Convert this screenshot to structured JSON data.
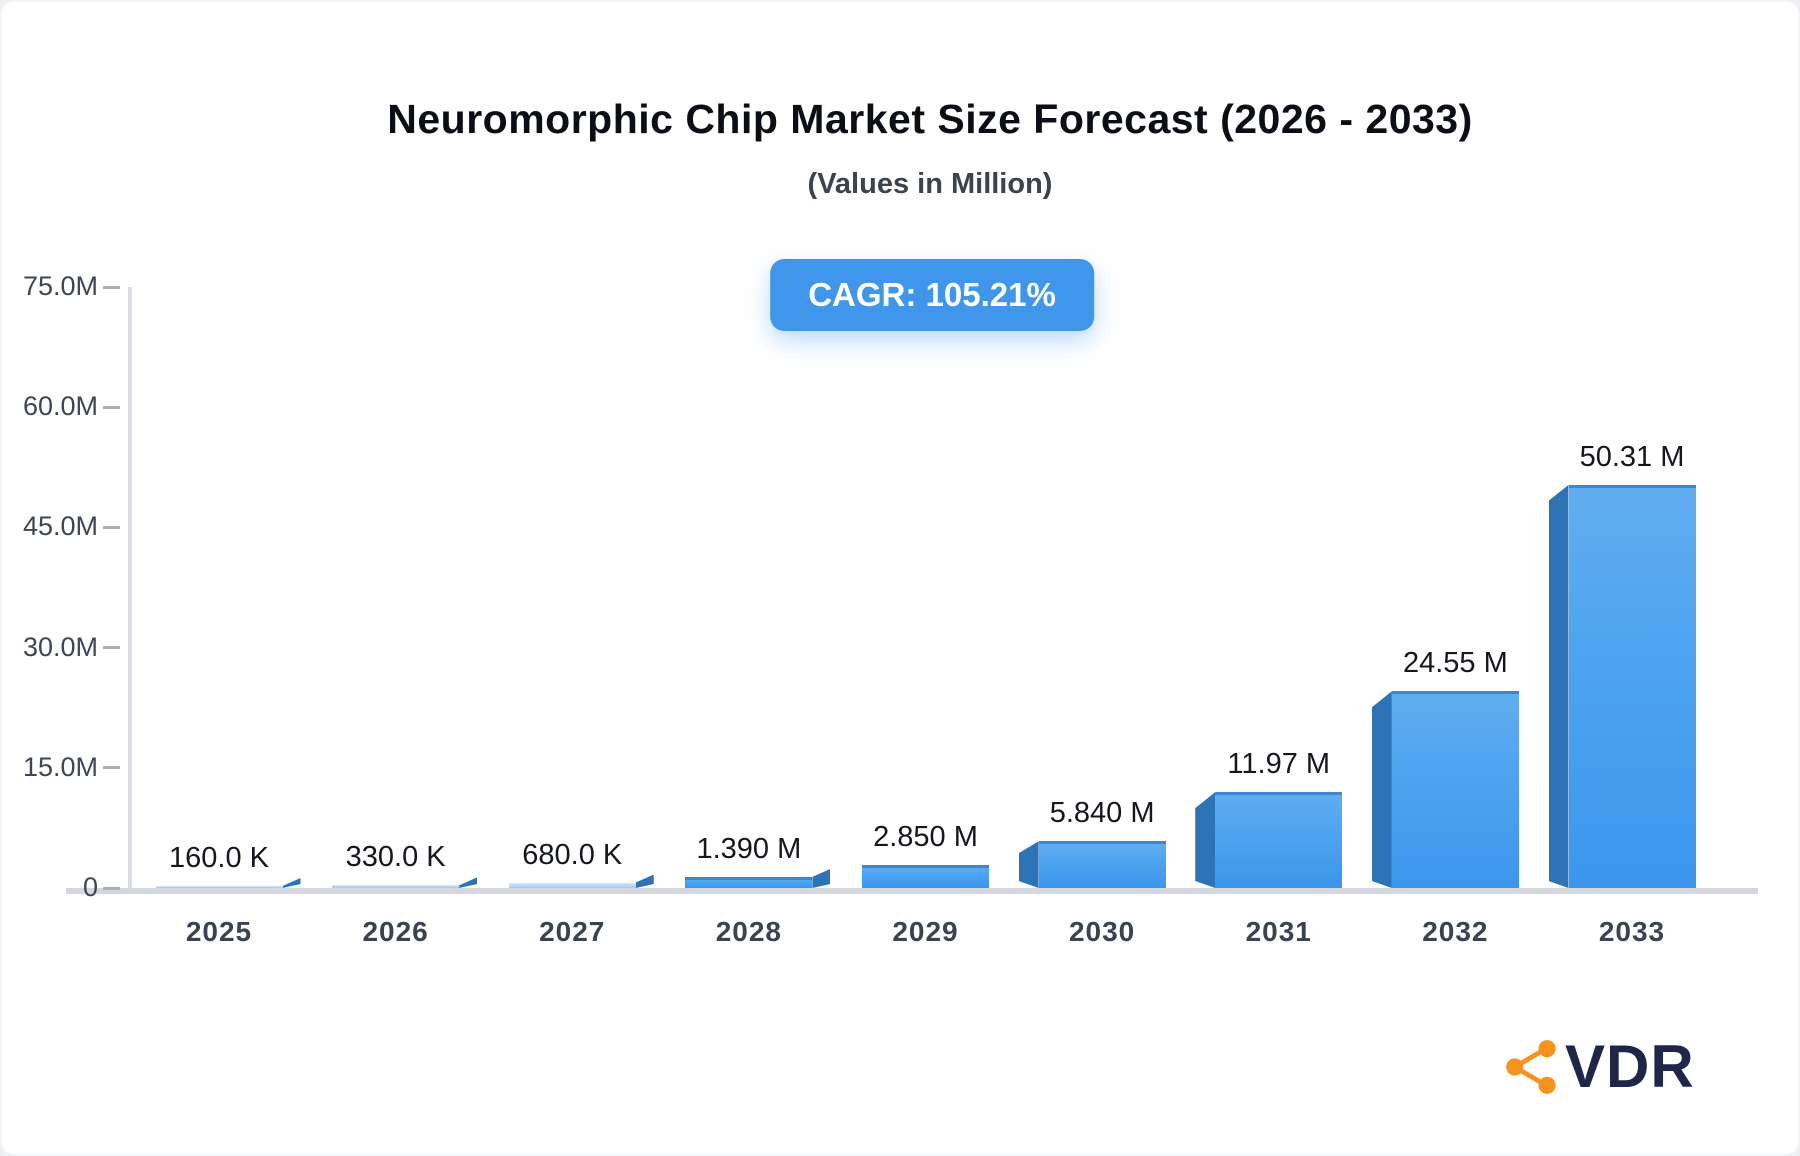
{
  "header": {
    "title": "Neuromorphic Chip Market Size Forecast (2026 - 2033)",
    "subtitle": "(Values in Million)",
    "cagr_badge": "CAGR: 105.21%"
  },
  "chart_data": {
    "type": "bar",
    "title": "Neuromorphic Chip Market Size Forecast (2026 - 2033)",
    "subtitle": "(Values in Million)",
    "cagr_percent": 105.21,
    "categories": [
      "2025",
      "2026",
      "2027",
      "2028",
      "2029",
      "2030",
      "2031",
      "2032",
      "2033"
    ],
    "values_millions": [
      0.16,
      0.33,
      0.68,
      1.39,
      2.85,
      5.84,
      11.97,
      24.55,
      50.31
    ],
    "value_labels": [
      "160.0 K",
      "330.0 K",
      "680.0 K",
      "1.390 M",
      "2.850 M",
      "5.840 M",
      "11.97 M",
      "24.55 M",
      "50.31 M"
    ],
    "xlabel": "",
    "ylabel": "",
    "ylim_millions": [
      0,
      75
    ],
    "grid": false,
    "legend": null,
    "y_axis": {
      "ticks": [
        {
          "label": "0",
          "value_m": 0
        },
        {
          "label": "15.0M",
          "value_m": 15
        },
        {
          "label": "30.0M",
          "value_m": 30
        },
        {
          "label": "45.0M",
          "value_m": 45
        },
        {
          "label": "60.0M",
          "value_m": 60
        },
        {
          "label": "75.0M",
          "value_m": 75
        }
      ]
    },
    "colors": {
      "bar_face_top": "#61adf1",
      "bar_face_bottom": "#3b96ec",
      "bar_side": "#2c74b6",
      "badge_background": "#3f96ea",
      "badge_text": "#ffffff",
      "axis_line": "#d4d7dd"
    }
  },
  "logo": {
    "text": "VDR",
    "icon": "share-network-icon",
    "icon_color": "#f6921e",
    "text_color": "#20254a"
  }
}
